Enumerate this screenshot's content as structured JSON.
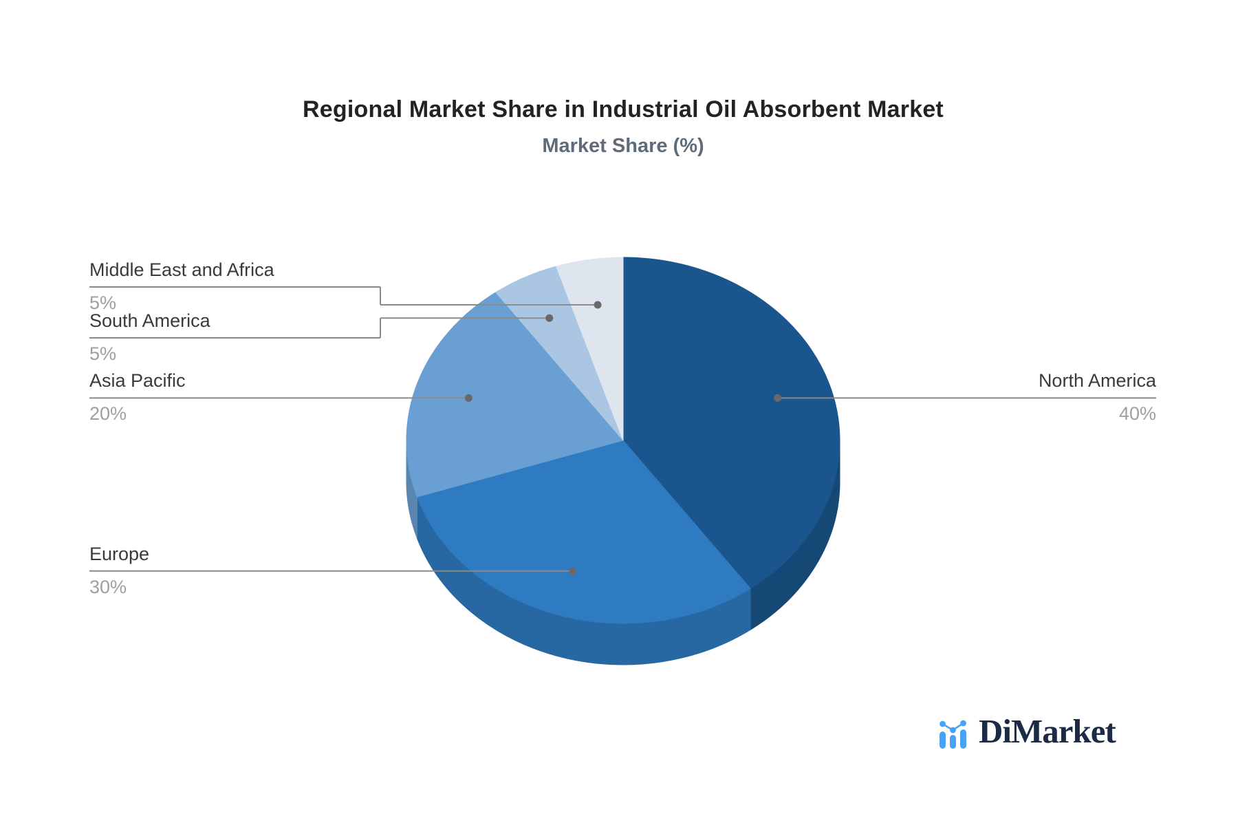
{
  "chart_data": {
    "type": "pie",
    "title": "Regional Market Share in Industrial Oil Absorbent Market",
    "subtitle": "Market Share (%)",
    "unit": "%",
    "effect": "3d",
    "start_angle": "12-oclock",
    "direction": "clockwise",
    "legend_position": "none",
    "labels_style": "callout-lines-with-percent",
    "segments": [
      {
        "label": "North America",
        "value": 40,
        "display": "40%",
        "color": "#1a568d",
        "label_side": "right"
      },
      {
        "label": "Europe",
        "value": 30,
        "display": "30%",
        "color": "#2e7bc1",
        "label_side": "left"
      },
      {
        "label": "Asia Pacific",
        "value": 20,
        "display": "20%",
        "color": "#699fd3",
        "label_side": "left"
      },
      {
        "label": "South America",
        "value": 5,
        "display": "5%",
        "color": "#aac6e2",
        "label_side": "left"
      },
      {
        "label": "Middle East and Africa",
        "value": 5,
        "display": "5%",
        "color": "#dee5ef",
        "label_side": "left"
      }
    ],
    "callout_line_color": "#8a8a8a",
    "callout_dot_color": "#696969",
    "label_text_color": "#3a3a3a",
    "value_text_color": "#9da0a3"
  },
  "branding": {
    "logo_text": "DiMarket",
    "logo_text_color": "#1b2a45",
    "logo_icon_color": "#4aa2f6"
  }
}
